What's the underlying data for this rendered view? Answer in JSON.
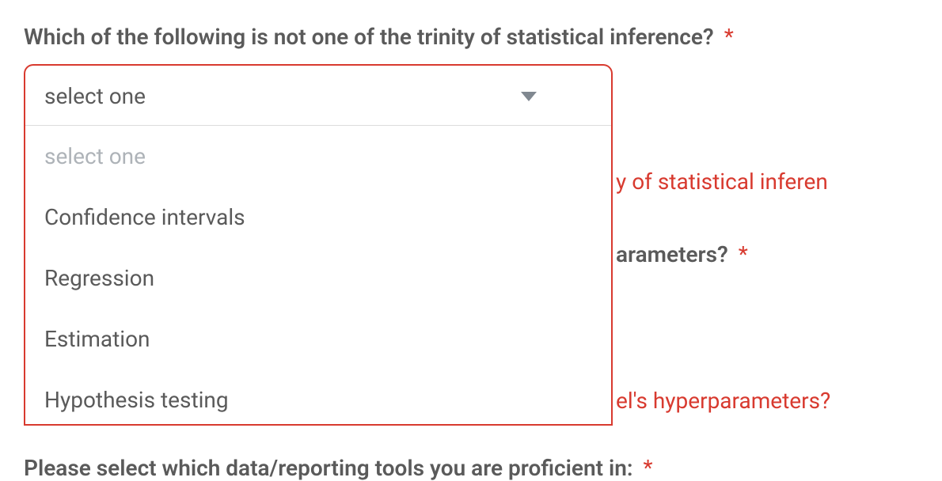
{
  "colors": {
    "error_red": "#d83a2f",
    "text_gray": "#5a5a5a",
    "placeholder_gray": "#aeb3b8",
    "caret_gray": "#808890",
    "divider_gray": "#dcdcdc",
    "background": "#ffffff"
  },
  "typography": {
    "font_family": "Roboto, Helvetica Neue, Arial, sans-serif",
    "question_fontsize": 28,
    "question_fontweight": 600,
    "option_fontsize": 28
  },
  "question1": {
    "text": "Which of the following is not one of the trinity of statistical inference?",
    "required_marker": "*",
    "dropdown": {
      "selected": "select one",
      "options": [
        {
          "label": "select one",
          "is_placeholder": true
        },
        {
          "label": "Confidence intervals",
          "is_placeholder": false
        },
        {
          "label": "Regression",
          "is_placeholder": false
        },
        {
          "label": "Estimation",
          "is_placeholder": false
        },
        {
          "label": "Hypothesis testing",
          "is_placeholder": false
        }
      ]
    }
  },
  "background_fragments": {
    "q1_error_fragment": "y of statistical inferen",
    "q2_fragment": "arameters?",
    "q2_asterisk": "*",
    "q3_error_fragment": "el's hyperparameters?",
    "q4_text": "Please select which data/reporting tools you are proficient in:",
    "q4_asterisk": "*"
  }
}
